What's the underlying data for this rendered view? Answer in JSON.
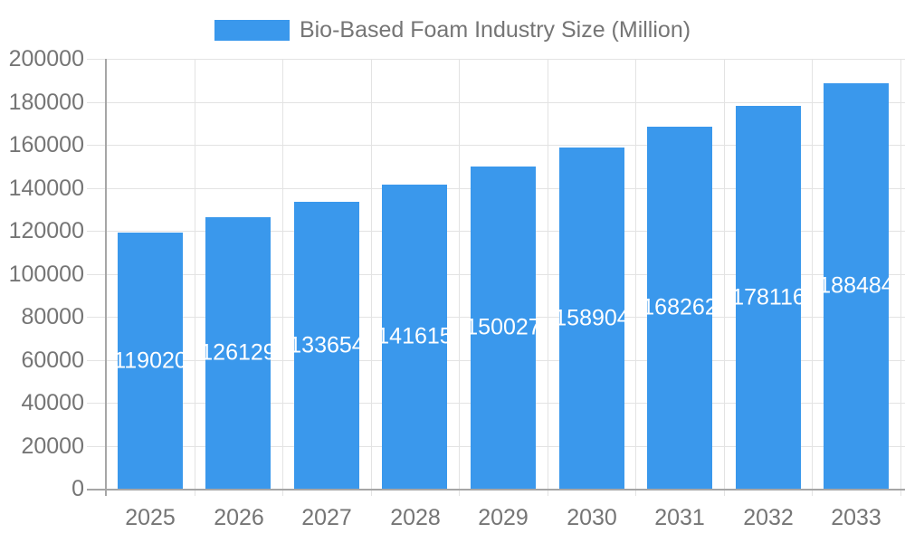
{
  "legend": {
    "label": "Bio-Based Foam Industry Size (Million)"
  },
  "chart_data": {
    "type": "bar",
    "title": "Bio-Based Foam Industry Size (Million)",
    "categories": [
      "2025",
      "2026",
      "2027",
      "2028",
      "2029",
      "2030",
      "2031",
      "2032",
      "2033"
    ],
    "values": [
      119020,
      126129,
      133654,
      141615,
      150027,
      158904,
      168262,
      178116,
      188484
    ],
    "xlabel": "",
    "ylabel": "",
    "ylim": [
      0,
      200000
    ],
    "ytick_step": 20000,
    "yticks": [
      0,
      20000,
      40000,
      60000,
      80000,
      100000,
      120000,
      140000,
      160000,
      180000,
      200000
    ],
    "grid": true,
    "legend_position": "top",
    "colors": {
      "bar": "#3A98EC",
      "data_label": "#ffffff",
      "axis_text": "#757575",
      "gridline": "#e3e3e3",
      "axis_line": "#a6a6a6",
      "background": "#ffffff"
    }
  }
}
